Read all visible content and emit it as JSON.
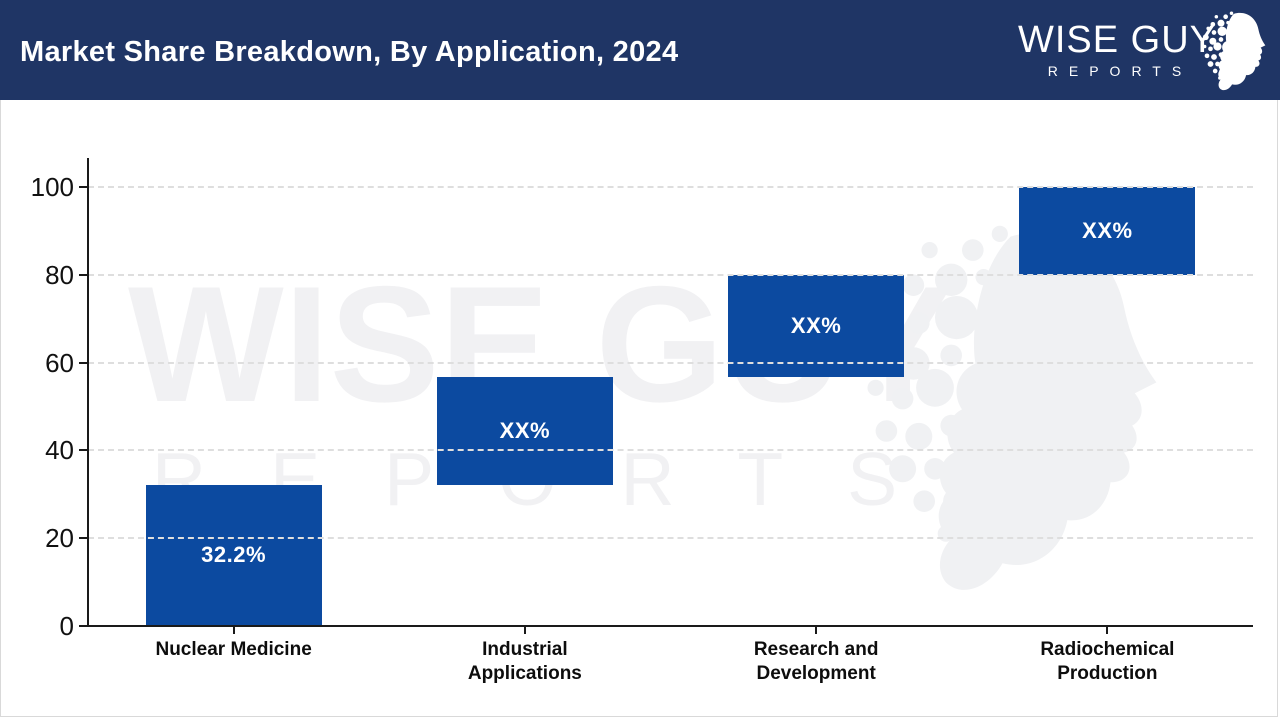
{
  "header": {
    "title": "Market Share Breakdown, By Application, 2024",
    "logo": {
      "line1": "WISE GUY",
      "line2": "REPORTS"
    }
  },
  "watermark": {
    "line1": "WISE GUY",
    "line2": "REPORTS"
  },
  "colors": {
    "header_bg": "#1f3565",
    "bar": "#0c4aa0",
    "grid": "#dedede",
    "axis": "#1a1a1a",
    "watermark": "#f1f1f3",
    "bar_value_text": "#ffffff"
  },
  "chart_data": {
    "type": "bar",
    "variant": "waterfall",
    "title": "Market Share Breakdown, By Application, 2024",
    "xlabel": "",
    "ylabel": "",
    "categories": [
      "Nuclear Medicine",
      "Industrial Applications",
      "Research and Development",
      "Radiochemical Production"
    ],
    "bars": [
      {
        "category": "Nuclear Medicine",
        "category_lines": "Nuclear Medicine",
        "start": 0,
        "end": 32.2,
        "display_value": "32.2%"
      },
      {
        "category": "Industrial Applications",
        "category_lines": "Industrial\nApplications",
        "start": 32.2,
        "end": 56.8,
        "display_value": "XX%"
      },
      {
        "category": "Research and Development",
        "category_lines": "Research and\nDevelopment",
        "start": 56.8,
        "end": 80,
        "display_value": "XX%"
      },
      {
        "category": "Radiochemical Production",
        "category_lines": "Radiochemical\nProduction",
        "start": 80,
        "end": 100,
        "display_value": "XX%"
      }
    ],
    "yticks": [
      0,
      20,
      40,
      60,
      80,
      100
    ],
    "ylim": [
      0,
      107
    ],
    "grid": "horizontal-dashed",
    "grid_above_bars": true,
    "legend": "none",
    "value_labels": "centered-inside-bars"
  }
}
